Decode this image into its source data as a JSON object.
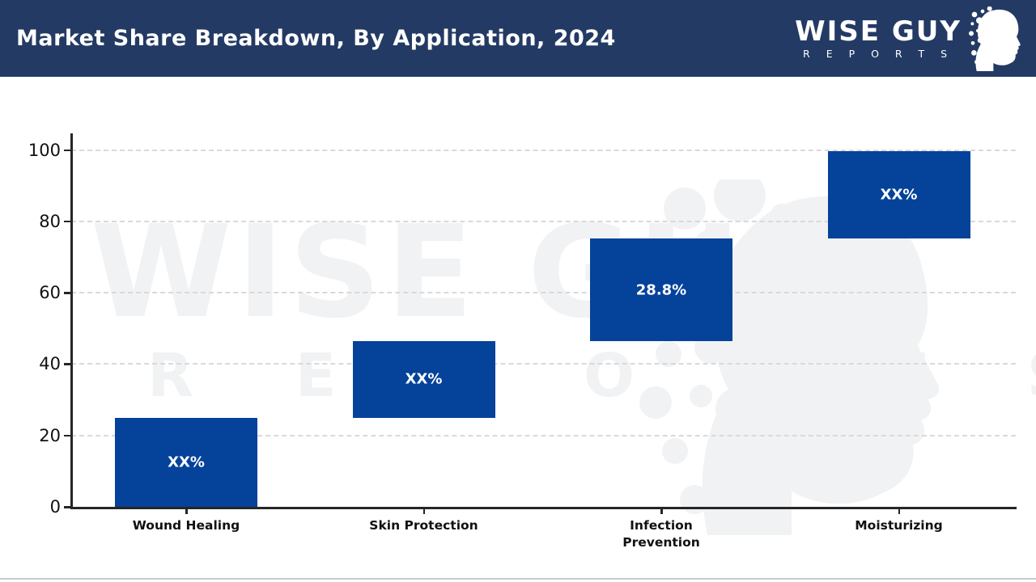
{
  "header": {
    "title": "Market Share Breakdown, By Application, 2024",
    "brand": {
      "line1": "WISE GUY",
      "line2": "R E P O R T S"
    }
  },
  "watermark": {
    "line1": "WISE GU",
    "line2": "R E P O R T S"
  },
  "colors": {
    "header_bg": "#233a64",
    "title_text": "#ffffff",
    "bar": "#05429a",
    "bar_label": "#ffffff",
    "gridline": "#d9d9d9",
    "axis": "#262626",
    "tick_label": "#111111",
    "watermark": "#f1f2f4",
    "bottom_rule": "#c9c9c9"
  },
  "chart_data": {
    "type": "bar",
    "variant": "floating waterfall-style segment bars",
    "title": "Market Share Breakdown, By Application, 2024",
    "categories": [
      "Wound Healing",
      "Skin Protection",
      "Infection Prevention",
      "Moisturizing"
    ],
    "category_label_lines": [
      [
        "Wound Healing"
      ],
      [
        "Skin Protection"
      ],
      [
        "Infection",
        "Prevention"
      ],
      [
        "Moisturizing"
      ]
    ],
    "bars": [
      {
        "category": "Wound Healing",
        "start": 0,
        "end": 25,
        "label": "XX%"
      },
      {
        "category": "Skin Protection",
        "start": 25,
        "end": 46.4,
        "label": "XX%"
      },
      {
        "category": "Infection Prevention",
        "start": 46.4,
        "end": 75.2,
        "label": "28.8%"
      },
      {
        "category": "Moisturizing",
        "start": 75.2,
        "end": 99.7,
        "label": "XX%"
      }
    ],
    "xlabel": "",
    "ylabel": "",
    "ylim": [
      0,
      100
    ],
    "yticks": [
      0,
      20,
      40,
      60,
      80,
      100
    ],
    "grid": "horizontal dashed lines at each y tick above 0",
    "legend": null
  }
}
